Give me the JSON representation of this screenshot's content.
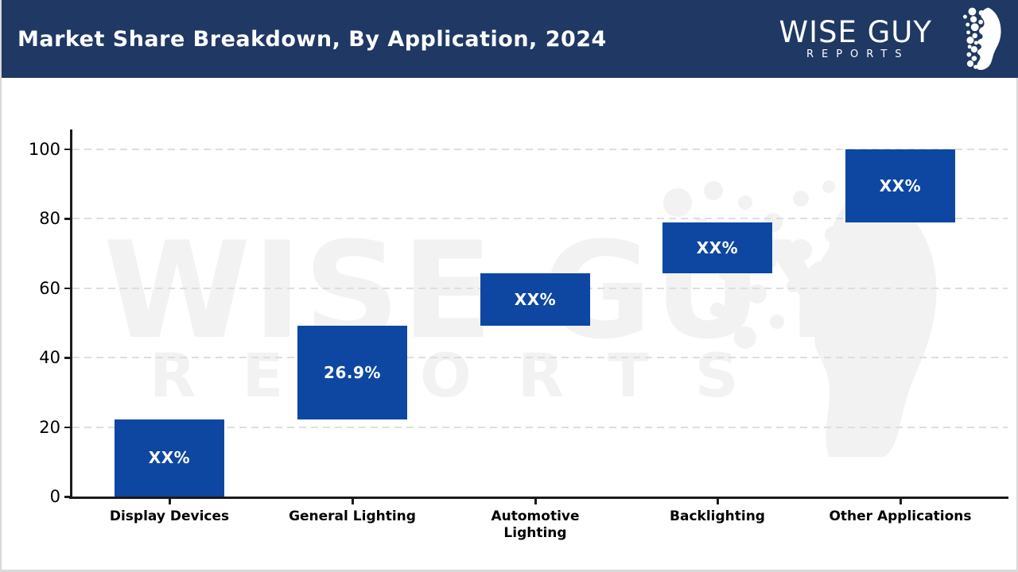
{
  "header": {
    "title": "Market Share Breakdown, By Application, 2024",
    "bg_color": "#1f3864",
    "logo": {
      "line1": "WISE GUY",
      "line2": "REPORTS"
    }
  },
  "watermark": {
    "line1": "WISE GUY",
    "line2": "REPORTS"
  },
  "chart_data": {
    "type": "bar",
    "subtype": "stacked-waterfall",
    "title": "Market Share Breakdown, By Application, 2024",
    "xlabel": "",
    "ylabel": "",
    "ylim": [
      0,
      100
    ],
    "yticks": [
      0,
      20,
      40,
      60,
      80,
      100
    ],
    "grid": "horizontal-dashed",
    "legend": "none",
    "categories": [
      "Display Devices",
      "General Lighting",
      "Automotive Lighting",
      "Backlighting",
      "Other Applications"
    ],
    "tick_labels": [
      "Display Devices",
      "General Lighting",
      "Automotive\nLighting",
      "Backlighting",
      "Other Applications"
    ],
    "series": [
      {
        "name": "Market Share",
        "values": [
          22.2,
          26.9,
          15.1,
          14.7,
          21.1
        ],
        "segment_start": [
          0,
          22.2,
          49.1,
          64.2,
          78.9
        ],
        "segment_end": [
          22.2,
          49.1,
          64.2,
          78.9,
          100
        ],
        "bar_labels": [
          "XX%",
          "26.9%",
          "XX%",
          "XX%",
          "XX%"
        ]
      }
    ],
    "bar_color": "#0d47a1",
    "bar_label_color": "#ffffff",
    "axis_color": "#1a1a1a",
    "grid_color": "#dedede"
  }
}
